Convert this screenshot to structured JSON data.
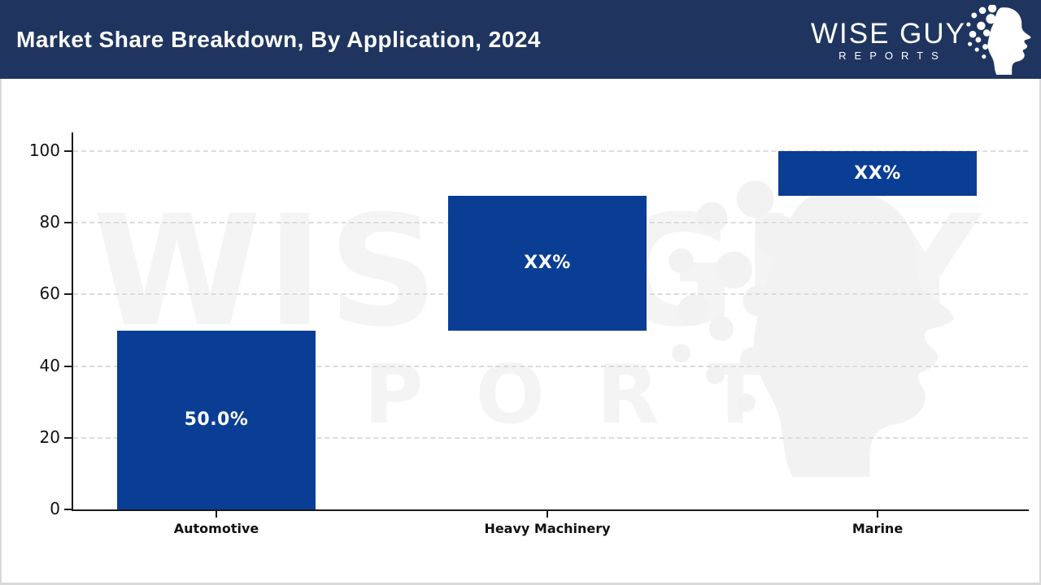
{
  "header": {
    "title": "Market Share Breakdown, By Application, 2024",
    "logo": {
      "line1": "WISE GUY",
      "line2": "REPORTS"
    }
  },
  "watermark": {
    "line1": "WISE GUY",
    "line2": "REPORTS"
  },
  "colors": {
    "header_bg": "#1f3560",
    "bar": "#0a3e94",
    "gridline": "#dcdcdc",
    "axis": "#1a1a1a",
    "bar_label": "#ffffff",
    "watermark": "#f3f3f3",
    "canvas_border": "#d9d9d9"
  },
  "chart_data": {
    "type": "bar",
    "subtype": "waterfall",
    "title": "Market Share Breakdown, By Application, 2024",
    "categories": [
      "Automotive",
      "Heavy Machinery",
      "Marine"
    ],
    "series": [
      {
        "name": "Market Share (%)",
        "segments": [
          {
            "category": "Automotive",
            "start": 0,
            "end": 50,
            "label": "50.0%"
          },
          {
            "category": "Heavy Machinery",
            "start": 50,
            "end": 87.5,
            "label": "XX%"
          },
          {
            "category": "Marine",
            "start": 87.5,
            "end": 100,
            "label": "XX%"
          }
        ]
      }
    ],
    "ylim": [
      0,
      100
    ],
    "yticks": [
      0,
      20,
      40,
      60,
      80,
      100
    ],
    "xlabel": "",
    "ylabel": "",
    "grid": "horizontal-dashed",
    "legend": "none"
  }
}
